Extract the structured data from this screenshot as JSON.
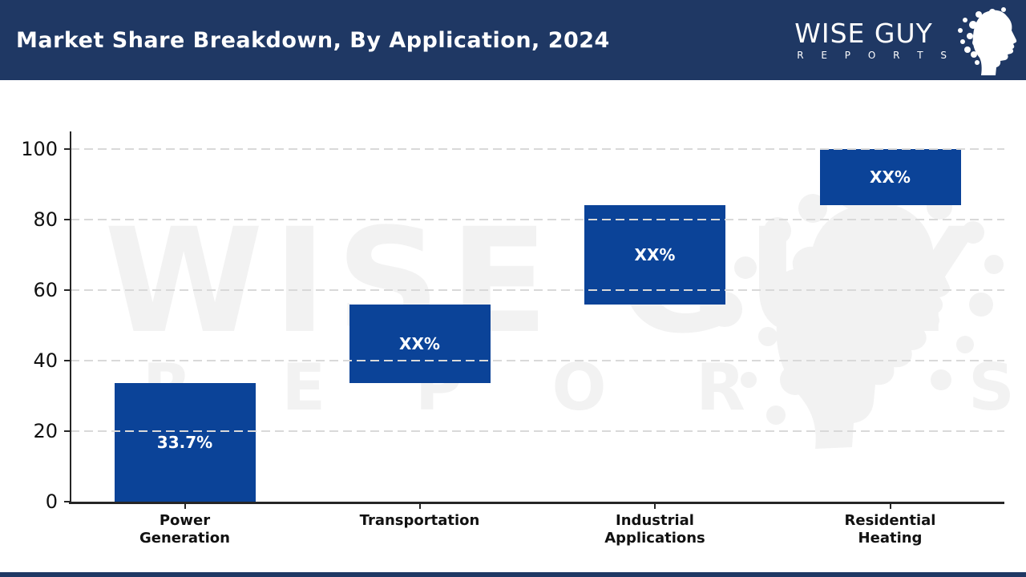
{
  "header": {
    "title": "Market Share Breakdown, By Application, 2024",
    "bg_color": "#1f3864",
    "logo": {
      "wordmark": "WISE GUY",
      "subtitle": "R E P O R T S"
    }
  },
  "watermark": {
    "wordmark": "WISE GUY",
    "subtitle": "R E P O R T S"
  },
  "chart_data": {
    "type": "bar",
    "subtype": "waterfall-floating-bars",
    "title": "Market Share Breakdown, By Application, 2024",
    "categories": [
      "Power Generation",
      "Transportation",
      "Industrial Applications",
      "Residential Heating"
    ],
    "segments": [
      {
        "category": "Power Generation",
        "start": 0,
        "end": 33.7,
        "label": "33.7%"
      },
      {
        "category": "Transportation",
        "start": 33.7,
        "end": 56.0,
        "label": "XX%"
      },
      {
        "category": "Industrial Applications",
        "start": 56.0,
        "end": 84.0,
        "label": "XX%"
      },
      {
        "category": "Residential Heating",
        "start": 84.0,
        "end": 100.0,
        "label": "XX%"
      }
    ],
    "xlabel": "",
    "ylabel": "",
    "ylim": [
      0,
      100
    ],
    "yticks": [
      0,
      20,
      40,
      60,
      80,
      100
    ],
    "grid": "horizontal dashed, drawn over bars",
    "legend": "none",
    "bar_color": "#0b4398",
    "bar_label_color": "#ffffff",
    "axis_color": "#262626",
    "gridline_color": "#d9d9d9"
  }
}
